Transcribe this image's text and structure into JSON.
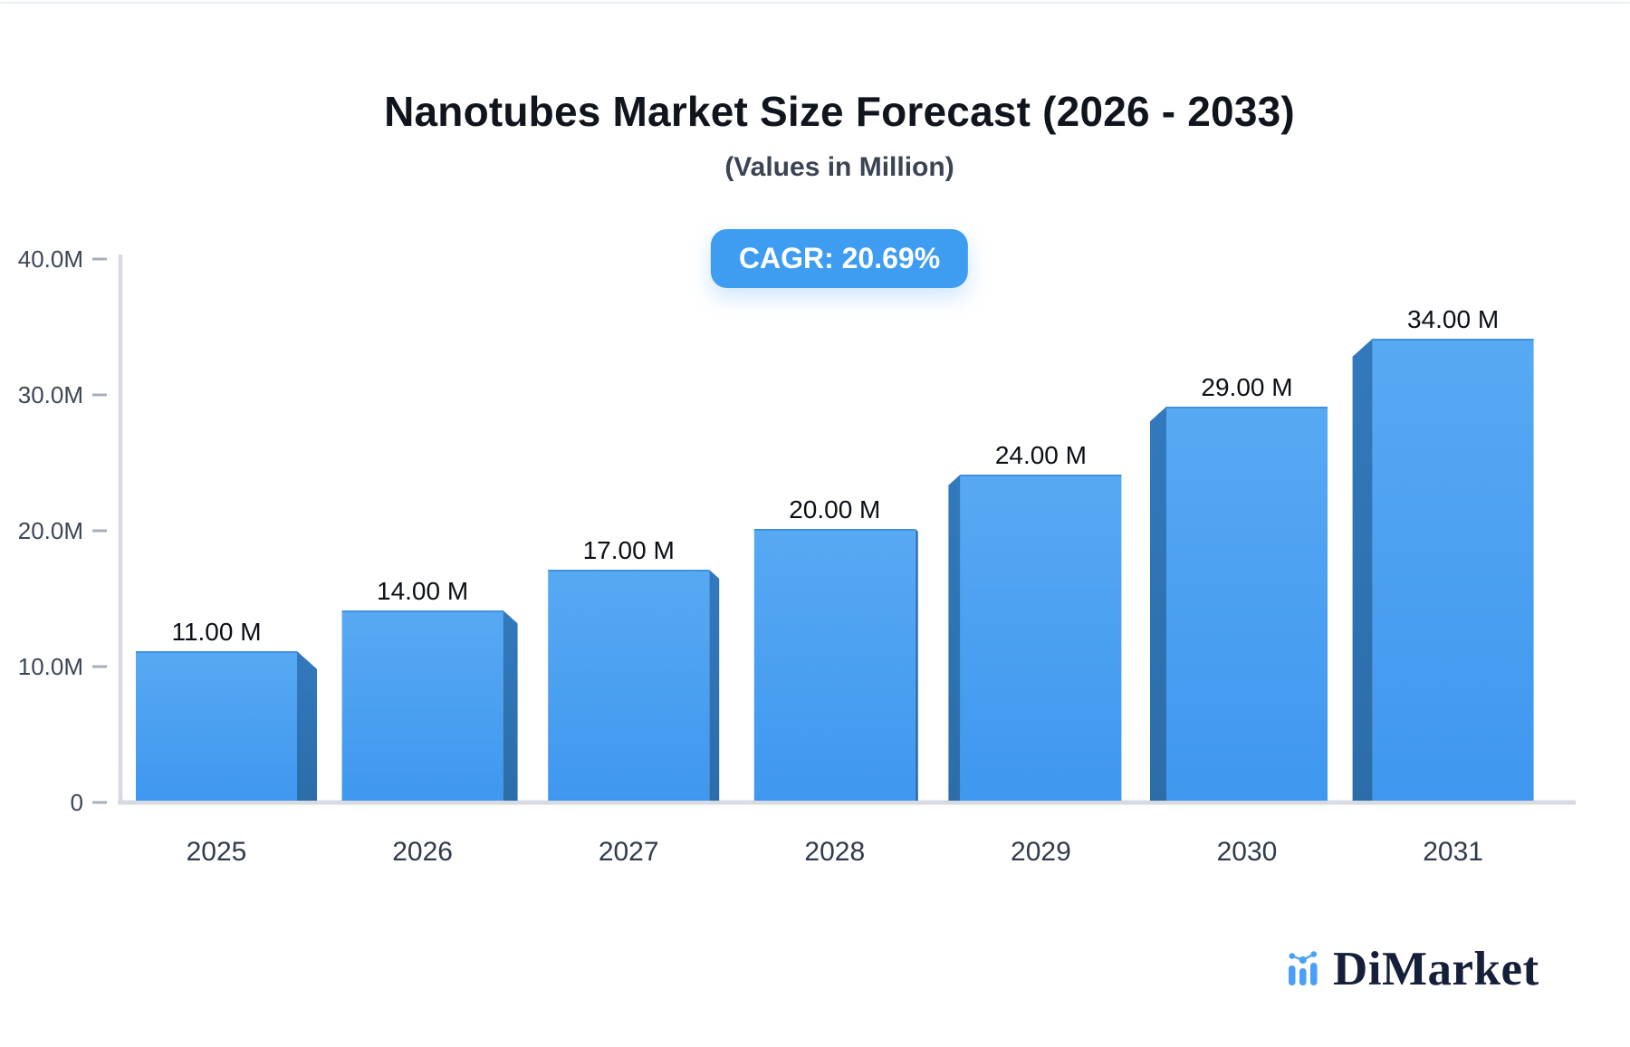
{
  "header": {
    "title": "Nanotubes Market Size Forecast (2026 - 2033)",
    "subtitle": "(Values in Million)"
  },
  "badge": {
    "label": "CAGR: 20.69%",
    "background": "#3e9cf1",
    "text_color": "#ffffff"
  },
  "chart_data": {
    "type": "bar",
    "title": "Nanotubes Market Size Forecast (2026 - 2033)",
    "subtitle": "(Values in Million)",
    "unit": "Million",
    "categories": [
      "2025",
      "2026",
      "2027",
      "2028",
      "2029",
      "2030",
      "2031"
    ],
    "values": [
      11,
      14,
      17,
      20,
      24,
      29,
      34
    ],
    "value_labels": [
      "11.00 M",
      "14.00 M",
      "17.00 M",
      "20.00 M",
      "24.00 M",
      "29.00 M",
      "34.00 M"
    ],
    "xlabel": "",
    "ylabel": "",
    "ylim": [
      0,
      40
    ],
    "yticks": [
      {
        "label": "40.0M",
        "value": 40
      },
      {
        "label": "30.0M",
        "value": 30
      },
      {
        "label": "20.0M",
        "value": 20
      },
      {
        "label": "10.0M",
        "value": 10
      },
      {
        "label": "0",
        "value": 0
      }
    ],
    "grid": false,
    "legend": null,
    "bar_style": "3d-perspective-column"
  },
  "colors": {
    "bar_face_top": "#57a9f2",
    "bar_face_bottom": "#3f97ef",
    "bar_face_edge": "#2d7ed4",
    "bar_side_light": "#3279bd",
    "bar_side_dark": "#2c6da9",
    "axis_line": "#d7dbe1",
    "tick_dash": "#a8afb9",
    "tick_label": "#3d4654",
    "category_label": "#303b4c",
    "value_label": "#0b1016",
    "badge_blue": "#3e9cf1"
  },
  "logo": {
    "text": "DiMarket",
    "icon": "mini-bar-chart-icon",
    "icon_color": "#4aa0f6",
    "text_color": "#151f39"
  }
}
